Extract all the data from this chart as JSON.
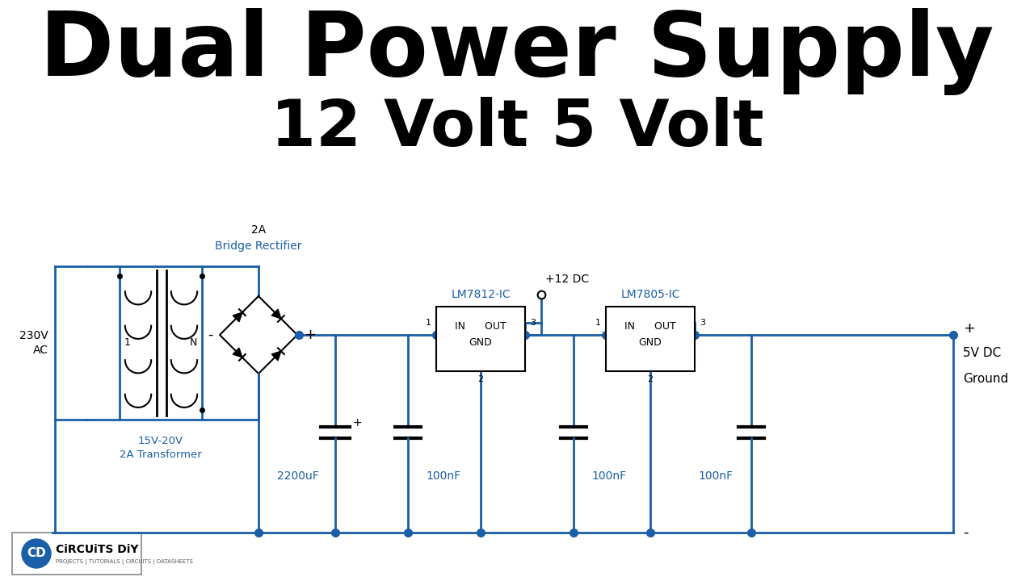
{
  "title1": "Dual Power Supply",
  "title2": "12 Volt 5 Volt",
  "bg_color": "#ffffff",
  "circuit_color": "#1a5fa8",
  "black_color": "#000000",
  "blue_label_color": "#1a5fa8",
  "title1_fontsize": 80,
  "title2_fontsize": 58,
  "label_230v": "230V\nAC",
  "label_transformer": "15V-20V\n2A Transformer",
  "label_bridge_2a": "2A",
  "label_bridge": "Bridge Rectifier",
  "label_12dc": "+12 DC",
  "label_lm7812": "LM7812-IC",
  "label_lm7805": "LM7805-IC",
  "label_2200uf": "2200uF",
  "label_100nf1": "100nF",
  "label_100nf2": "100nF",
  "label_100nf3": "100nF",
  "label_5vdc": "5V DC",
  "label_ground": "Ground",
  "label_plus": "+",
  "label_minus": "-",
  "lw": 2.0,
  "dot_size": 7
}
